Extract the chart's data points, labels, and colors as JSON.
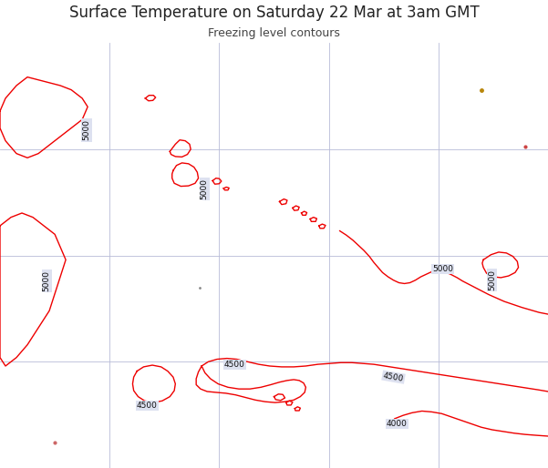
{
  "title": "Surface Temperature on Saturday 22 Mar at 3am GMT",
  "subtitle": "Freezing level contours",
  "title_fontsize": 12,
  "subtitle_fontsize": 9,
  "bg_color_map": "#dde1f0",
  "bg_color_header": "#ffffff",
  "contour_color": "#ee0000",
  "label_fontsize": 6.5,
  "fig_width": 6.01,
  "fig_height": 5.14,
  "dpi": 100,
  "grid_color": "#b8bcd8",
  "contour_linewidth": 1.0
}
